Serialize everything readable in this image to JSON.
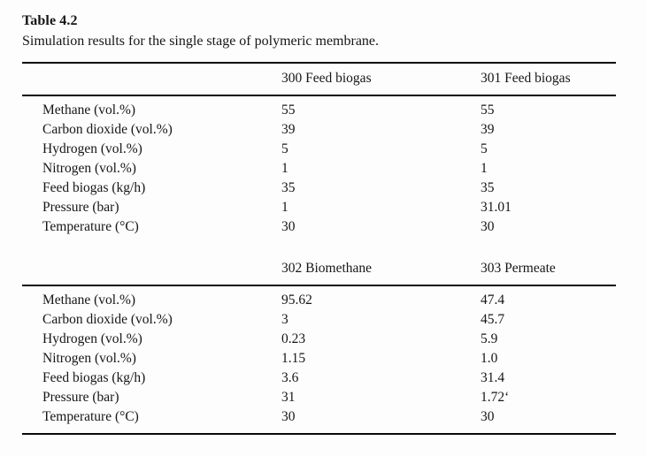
{
  "table": {
    "id": "Table 4.2",
    "caption": "Simulation results for the single stage of polymeric membrane.",
    "sections": [
      {
        "columns": [
          "300 Feed biogas",
          "301 Feed biogas"
        ],
        "rows": [
          {
            "label": "Methane (vol.%)",
            "values": [
              "55",
              "55"
            ]
          },
          {
            "label": "Carbon dioxide (vol.%)",
            "values": [
              "39",
              "39"
            ]
          },
          {
            "label": "Hydrogen (vol.%)",
            "values": [
              "5",
              "5"
            ]
          },
          {
            "label": "Nitrogen (vol.%)",
            "values": [
              "1",
              "1"
            ]
          },
          {
            "label": "Feed biogas (kg/h)",
            "values": [
              "35",
              "35"
            ]
          },
          {
            "label": "Pressure (bar)",
            "values": [
              "1",
              "31.01"
            ]
          },
          {
            "label": "Temperature (°C)",
            "values": [
              "30",
              "30"
            ]
          }
        ]
      },
      {
        "columns": [
          "302 Biomethane",
          "303 Permeate"
        ],
        "rows": [
          {
            "label": "Methane (vol.%)",
            "values": [
              "95.62",
              "47.4"
            ]
          },
          {
            "label": "Carbon dioxide (vol.%)",
            "values": [
              "3",
              "45.7"
            ]
          },
          {
            "label": "Hydrogen (vol.%)",
            "values": [
              "0.23",
              "5.9"
            ]
          },
          {
            "label": "Nitrogen (vol.%)",
            "values": [
              "1.15",
              "1.0"
            ]
          },
          {
            "label": "Feed biogas (kg/h)",
            "values": [
              "3.6",
              "31.4"
            ]
          },
          {
            "label": "Pressure (bar)",
            "values": [
              "31",
              "1.72‘"
            ]
          },
          {
            "label": "Temperature (°C)",
            "values": [
              "30",
              "30"
            ]
          }
        ]
      }
    ],
    "colors": {
      "text": "#161616",
      "rule": "#0a0a0a",
      "background": "#fdfdfd"
    }
  }
}
